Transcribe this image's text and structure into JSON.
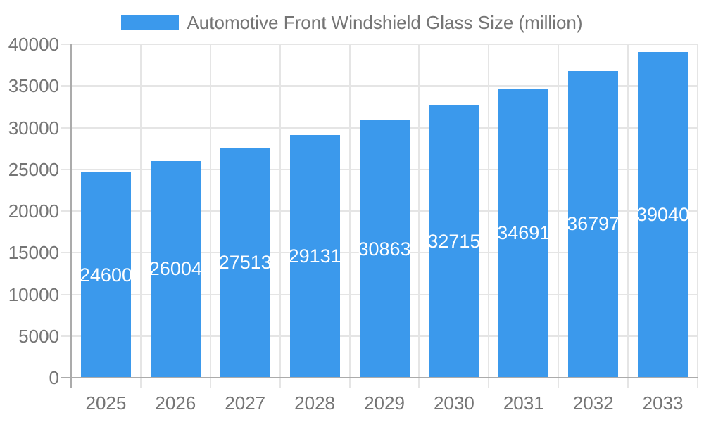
{
  "legend": {
    "label": "Automotive Front Windshield Glass Size (million)"
  },
  "chart_data": {
    "type": "bar",
    "title": "Automotive Front Windshield Glass Size (million)",
    "categories": [
      "2025",
      "2026",
      "2027",
      "2028",
      "2029",
      "2030",
      "2031",
      "2032",
      "2033"
    ],
    "values": [
      24600,
      26004,
      27513,
      29131,
      30863,
      32715,
      34691,
      36797,
      39040
    ],
    "xlabel": "",
    "ylabel": "",
    "ylim": [
      0,
      40000
    ],
    "yticks": [
      0,
      5000,
      10000,
      15000,
      20000,
      25000,
      30000,
      35000,
      40000
    ],
    "grid": true,
    "legend_position": "top-center",
    "value_label_position": "inside-center",
    "colors": {
      "bar": "#3B99EC",
      "value_label": "#FFFFFF",
      "axis_text": "#757575",
      "gridline": "#E5E5E5",
      "axis_line": "#ABABAB"
    }
  }
}
